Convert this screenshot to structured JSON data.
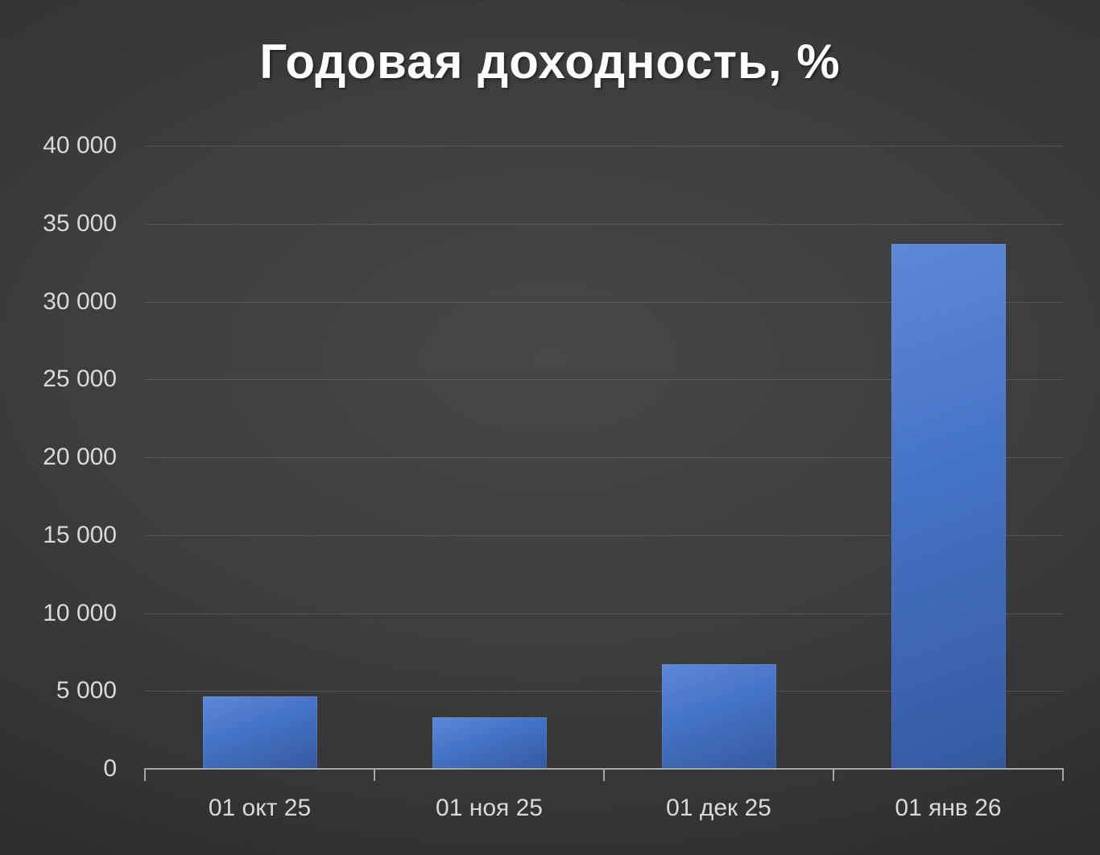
{
  "chart_data": {
    "type": "bar",
    "title": "Годовая доходность, %",
    "categories": [
      "01 окт 25",
      "01 ноя 25",
      "01 дек 25",
      "01 янв 26"
    ],
    "values": [
      4650,
      3300,
      6700,
      33700
    ],
    "xlabel": "",
    "ylabel": "",
    "ylim": [
      0,
      40000
    ],
    "ytick_step": 5000,
    "ytick_labels": [
      "0",
      "5 000",
      "10 000",
      "15 000",
      "20 000",
      "25 000",
      "30 000",
      "35 000",
      "40 000"
    ],
    "grid": true,
    "legend": false,
    "colors": {
      "bar": "#4472C4",
      "bar_gradient_light": "#5D88D8",
      "bar_gradient_dark": "#33589D",
      "axis": "#A6A6A6",
      "gridline": "rgba(255,255,255,0.14)",
      "text": "#D9D9D9",
      "title_text": "#FFFFFF",
      "background_center": "#474747",
      "background_edge": "#1F1F1F"
    }
  }
}
